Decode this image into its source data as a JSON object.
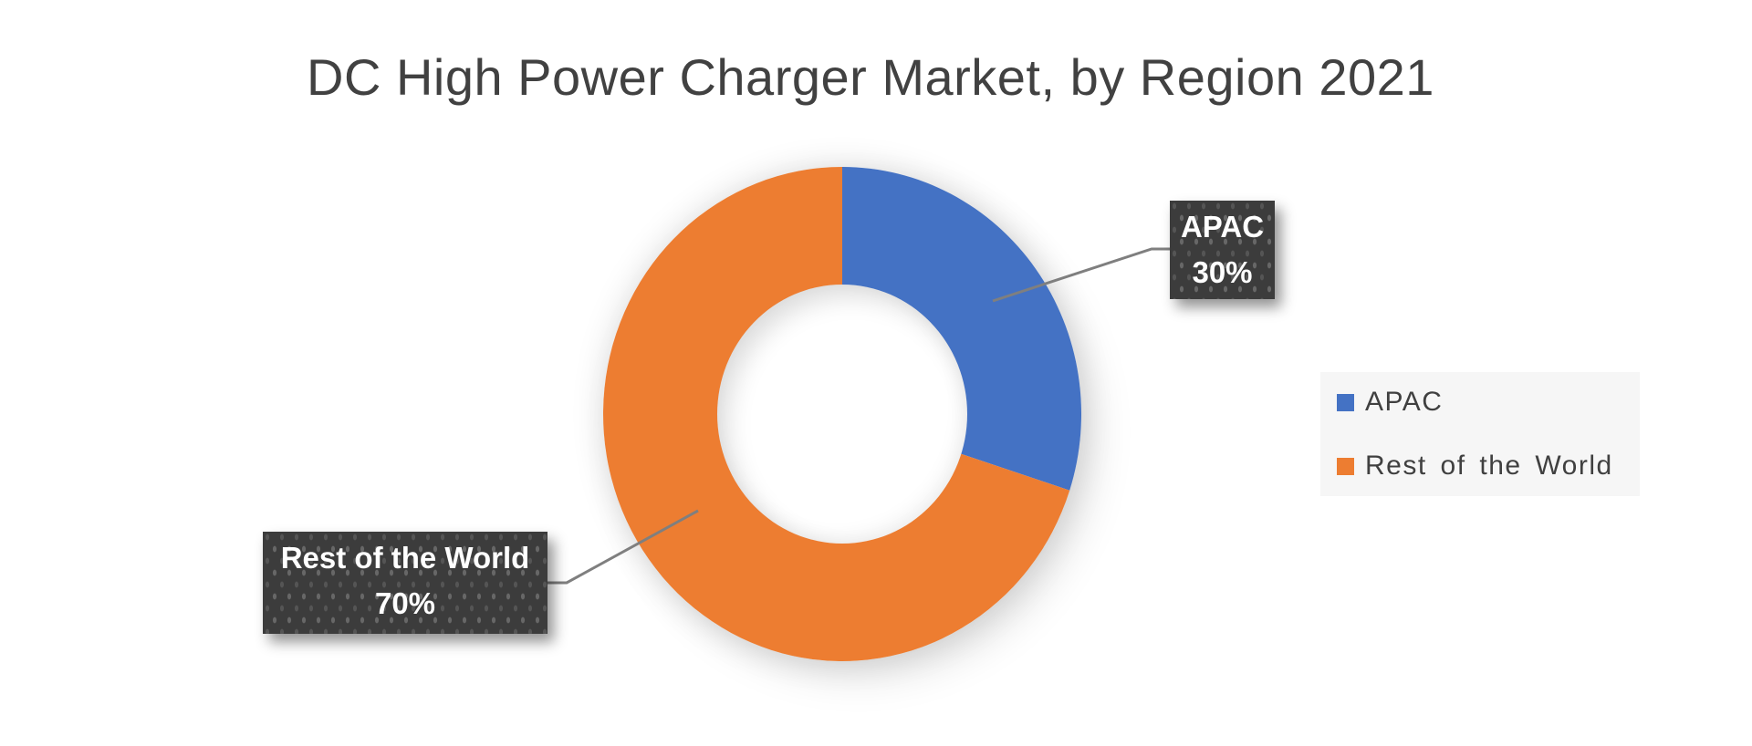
{
  "title": {
    "text": "DC High Power Charger Market, by Region 2021",
    "color": "#414141"
  },
  "chart_data": {
    "type": "pie",
    "subtype": "donut",
    "title": "DC High Power Charger Market, by Region 2021",
    "categories": [
      "APAC",
      "Rest of the World"
    ],
    "values": [
      30,
      70
    ],
    "unit": "%",
    "colors": [
      "#4472C4",
      "#ED7D31"
    ],
    "start_angle_deg": 0,
    "direction": "clockwise",
    "hole_ratio": 0.52,
    "legend_position": "right",
    "data_labels": [
      {
        "category": "APAC",
        "lines": [
          "APAC",
          "30%"
        ]
      },
      {
        "category": "Rest of the World",
        "lines": [
          "Rest of the World",
          "70%"
        ]
      }
    ]
  },
  "legend": {
    "items": [
      {
        "label": "APAC",
        "color": "#4472C4"
      },
      {
        "label": "Rest of the World",
        "color": "#ED7D31"
      }
    ]
  },
  "colors": {
    "leader_line": "#7F7F7F",
    "callout_background": "#3C3C3C",
    "callout_text": "#FFFFFF",
    "legend_background": "#F6F6F6",
    "title_text": "#414141",
    "page_background": "#FFFFFF"
  }
}
